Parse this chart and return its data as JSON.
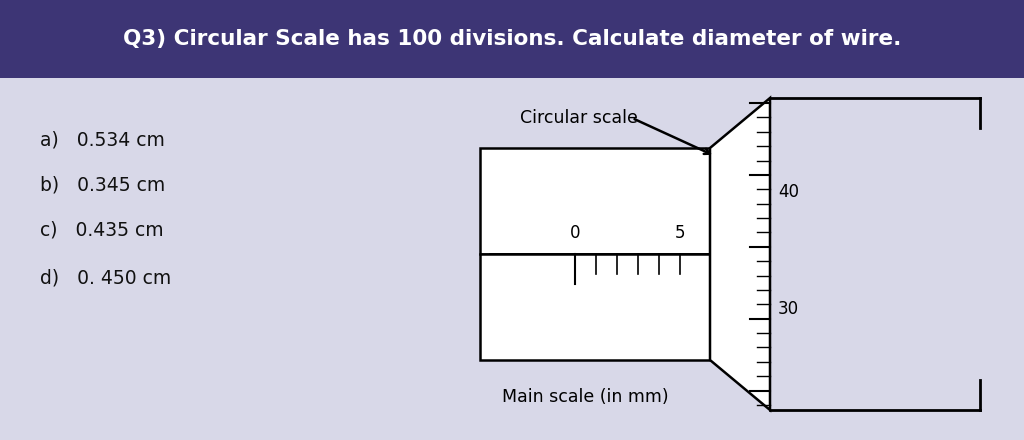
{
  "title": "Q3) Circular Scale has 100 divisions. Calculate diameter of wire.",
  "title_bg": "#3d3575",
  "title_color": "#ffffff",
  "bg_color": "#dcdce8",
  "options": [
    "a)   0.534 cm",
    "b)   0.345 cm",
    "c)   0.435 cm",
    "d)   0. 450 cm"
  ],
  "circular_scale_label": "Circular scale",
  "main_scale_label": "Main scale (in mm)",
  "label_40": "40",
  "label_30": "30",
  "ms_number_0": "0",
  "ms_number_5": "5",
  "content_bg": "#d8d8e8"
}
